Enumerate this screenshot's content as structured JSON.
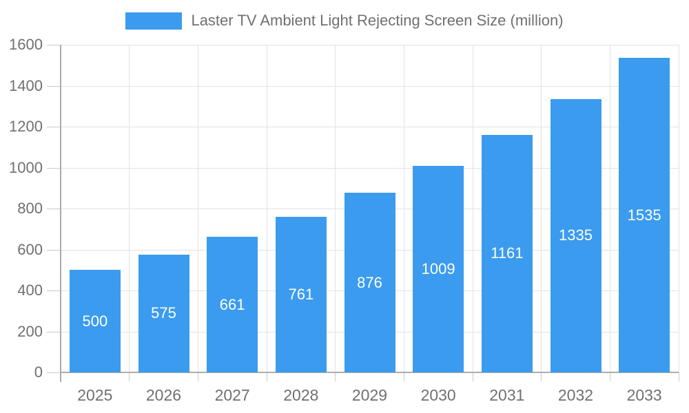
{
  "chart_data": {
    "type": "bar",
    "title": "Laster TV Ambient Light Rejecting Screen Size (million)",
    "categories": [
      "2025",
      "2026",
      "2027",
      "2028",
      "2029",
      "2030",
      "2031",
      "2032",
      "2033"
    ],
    "values": [
      500,
      575,
      661,
      761,
      876,
      1009,
      1161,
      1335,
      1535
    ],
    "xlabel": "",
    "ylabel": "",
    "ylim": [
      0,
      1600
    ],
    "ytick_step": 200,
    "yticks": [
      0,
      200,
      400,
      600,
      800,
      1000,
      1200,
      1400,
      1600
    ],
    "grid": true,
    "legend_position": "top",
    "value_labels": "inside-center"
  },
  "legend": {
    "label": "Laster TV Ambient Light Rejecting Screen Size (million)"
  },
  "colors": {
    "bar": "#3B9BEF",
    "grid": "#E2E2E2",
    "axis": "#ABABAB",
    "tick": "#C9C9C9",
    "text": "#707070",
    "value_label": "#FFFFFF",
    "background": "#FFFFFF"
  }
}
